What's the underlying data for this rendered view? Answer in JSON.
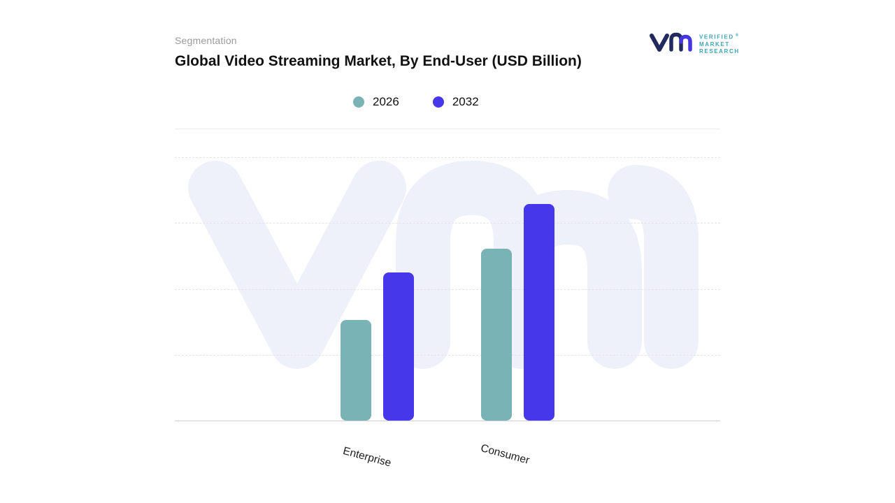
{
  "header": {
    "eyebrow": "Segmentation",
    "title": "Global Video Streaming Market, By End-User (USD Billion)"
  },
  "legend": [
    {
      "label": "2026",
      "color": "#7AB3B5"
    },
    {
      "label": "2032",
      "color": "#4737EA"
    }
  ],
  "logo": {
    "line1": "VERIFIED",
    "line2": "MARKET",
    "line3": "RESEARCH",
    "registered_mark": "®"
  },
  "colors": {
    "series_2026": "#7AB3B5",
    "series_2032": "#4737EA",
    "watermark": "#EEF1FA",
    "gridline": "#E3E3E8",
    "axis": "#CFCFD4"
  },
  "chart_data": {
    "type": "bar",
    "title": "Global Video Streaming Market, By End-User (USD Billion)",
    "categories": [
      "Enterprise",
      "Consumer"
    ],
    "series": [
      {
        "name": "2026",
        "color": "#7AB3B5",
        "values": [
          38,
          65
        ]
      },
      {
        "name": "2032",
        "color": "#4737EA",
        "values": [
          56,
          82
        ]
      }
    ],
    "xlabel": "",
    "ylabel": "",
    "ylim": [
      0,
      100
    ],
    "y_axis_labels_visible": false,
    "grid": "horizontal-dashed",
    "legend_position": "top-center"
  }
}
